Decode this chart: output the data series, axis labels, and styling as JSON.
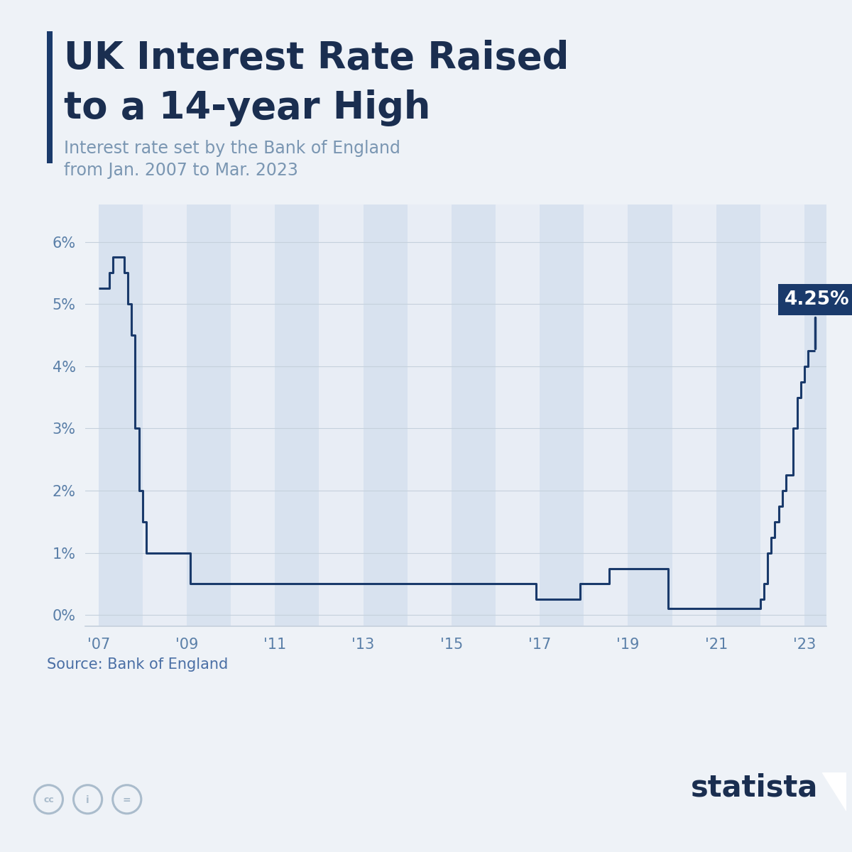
{
  "title_line1": "UK Interest Rate Raised",
  "title_line2": "to a 14-year High",
  "subtitle_line1": "Interest rate set by the Bank of England",
  "subtitle_line2": "from Jan. 2007 to Mar. 2023",
  "source": "Source: Bank of England",
  "annotation_label": "4.25%",
  "line_color": "#1a3a6b",
  "annotation_bg": "#1a3a6b",
  "annotation_text_color": "#ffffff",
  "background_color": "#eef2f7",
  "plot_bg_color": "#eef2f7",
  "stripe_color_dark": "#d8e2ef",
  "stripe_color_light": "#e8edf5",
  "title_color": "#1a2e50",
  "subtitle_color": "#7a96b2",
  "source_color": "#4a6fa5",
  "grid_color": "#c5d0dc",
  "axis_label_color": "#5a7fa8",
  "left_bar_color": "#1a3a6b",
  "ytick_values": [
    0,
    1,
    2,
    3,
    4,
    5,
    6
  ],
  "xtick_labels": [
    "'07",
    "'09",
    "'11",
    "'13",
    "'15",
    "'17",
    "'19",
    "'21",
    "'23"
  ],
  "xtick_values": [
    2007,
    2009,
    2011,
    2013,
    2015,
    2017,
    2019,
    2021,
    2023
  ],
  "xlim": [
    2006.7,
    2023.5
  ],
  "ylim": [
    -0.18,
    6.6
  ],
  "data_x": [
    2007.0,
    2007.083,
    2007.25,
    2007.333,
    2007.5,
    2007.583,
    2007.667,
    2007.75,
    2007.833,
    2007.917,
    2008.0,
    2008.083,
    2008.25,
    2008.583,
    2008.667,
    2008.75,
    2008.833,
    2008.917,
    2009.0,
    2009.083,
    2009.25,
    2009.333,
    2010.0,
    2011.0,
    2012.0,
    2013.0,
    2014.0,
    2015.0,
    2015.083,
    2016.0,
    2016.083,
    2016.917,
    2017.25,
    2017.917,
    2018.583,
    2019.083,
    2019.917,
    2020.083,
    2020.167,
    2021.583,
    2021.667,
    2021.75,
    2021.917,
    2022.0,
    2022.083,
    2022.167,
    2022.25,
    2022.333,
    2022.417,
    2022.5,
    2022.583,
    2022.667,
    2022.75,
    2022.833,
    2022.917,
    2023.0,
    2023.083,
    2023.25
  ],
  "data_y": [
    5.25,
    5.25,
    5.5,
    5.75,
    5.75,
    5.5,
    5.0,
    4.5,
    3.0,
    2.0,
    1.5,
    1.0,
    1.0,
    1.0,
    1.0,
    1.0,
    1.0,
    1.0,
    1.0,
    0.5,
    0.5,
    0.5,
    0.5,
    0.5,
    0.5,
    0.5,
    0.5,
    0.5,
    0.5,
    0.5,
    0.5,
    0.25,
    0.25,
    0.5,
    0.75,
    0.75,
    0.1,
    0.1,
    0.1,
    0.1,
    0.1,
    0.1,
    0.1,
    0.25,
    0.5,
    1.0,
    1.25,
    1.5,
    1.75,
    2.0,
    2.25,
    2.25,
    3.0,
    3.5,
    3.75,
    4.0,
    4.25,
    4.25
  ]
}
